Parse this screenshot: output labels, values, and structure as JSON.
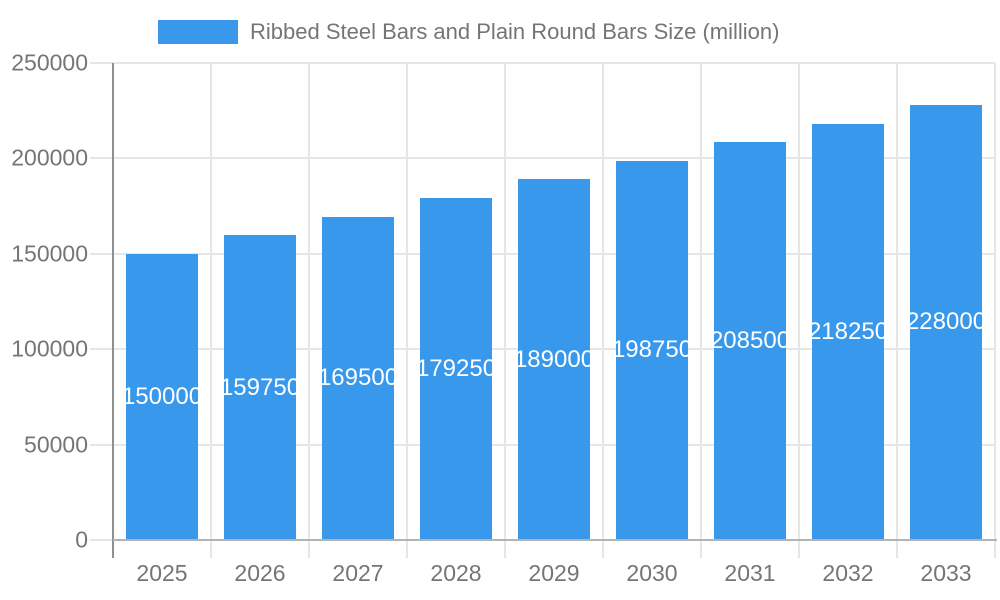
{
  "chart_data": {
    "type": "bar",
    "title": "",
    "legend_label": "Ribbed Steel Bars and Plain Round Bars Size (million)",
    "legend_position": "top",
    "categories": [
      "2025",
      "2026",
      "2027",
      "2028",
      "2029",
      "2030",
      "2031",
      "2032",
      "2033"
    ],
    "values": [
      150000,
      159750,
      169500,
      179250,
      189000,
      198750,
      208500,
      218250,
      228000
    ],
    "xlabel": "",
    "ylabel": "",
    "y_ticks": [
      0,
      50000,
      100000,
      150000,
      200000,
      250000
    ],
    "ylim": [
      0,
      250000
    ],
    "grid": true,
    "colors": {
      "bar": "#3898ec",
      "bar_value_text": "#ffffff",
      "axis_text": "#757575",
      "gridline": "#e6e6e6",
      "x_axis_line": "#b3b3b3",
      "y_axis_line": "#909090",
      "background": "#ffffff"
    }
  }
}
